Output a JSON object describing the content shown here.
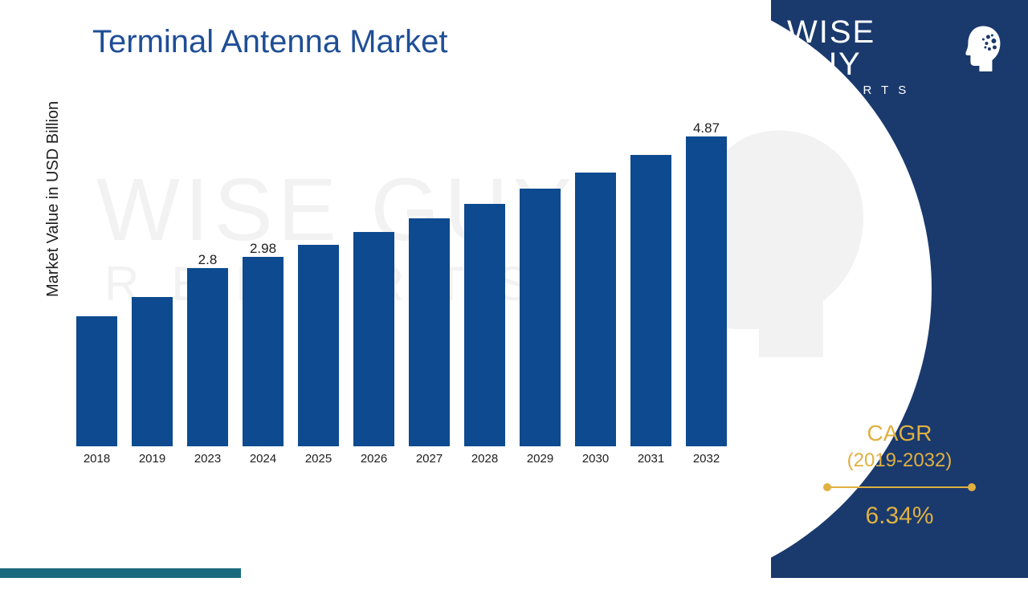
{
  "title": "Terminal Antenna Market",
  "logo": {
    "main": "WISE GUY",
    "sub": "REPORTS"
  },
  "watermark": {
    "main": "WISE GUY",
    "sub": "REPORTS"
  },
  "chart": {
    "type": "bar",
    "ylabel": "Market Value in USD Billion",
    "y_max": 5.0,
    "bar_color": "#0d4a8f",
    "background_color": "#ffffff",
    "bars": [
      {
        "year": "2018",
        "value": 2.05,
        "show_label": false
      },
      {
        "year": "2019",
        "value": 2.35,
        "show_label": false
      },
      {
        "year": "2023",
        "value": 2.8,
        "show_label": true,
        "label": "2.8"
      },
      {
        "year": "2024",
        "value": 2.98,
        "show_label": true,
        "label": "2.98"
      },
      {
        "year": "2025",
        "value": 3.17,
        "show_label": false
      },
      {
        "year": "2026",
        "value": 3.37,
        "show_label": false
      },
      {
        "year": "2027",
        "value": 3.58,
        "show_label": false
      },
      {
        "year": "2028",
        "value": 3.81,
        "show_label": false
      },
      {
        "year": "2029",
        "value": 4.05,
        "show_label": false
      },
      {
        "year": "2030",
        "value": 4.31,
        "show_label": false
      },
      {
        "year": "2031",
        "value": 4.58,
        "show_label": false
      },
      {
        "year": "2032",
        "value": 4.87,
        "show_label": true,
        "label": "4.87"
      }
    ]
  },
  "cagr": {
    "title": "CAGR",
    "period": "(2019-2032)",
    "value": "6.34%",
    "color": "#e0b040"
  },
  "sidebar_color": "#1a3a6e",
  "bottom_accent_color": "#1a6a7e"
}
